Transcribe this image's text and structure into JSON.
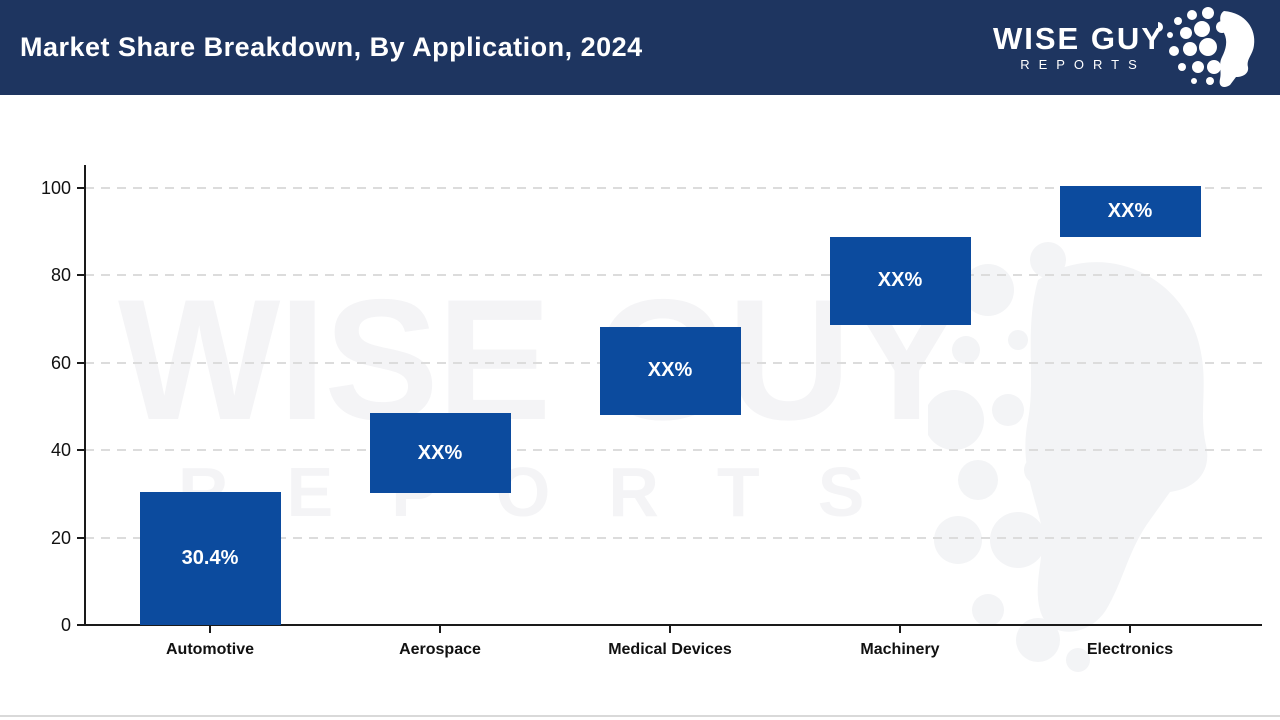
{
  "header": {
    "title": "Market Share Breakdown, By Application, 2024",
    "bg_color": "#1e3560",
    "logo": {
      "line1": "WISE GUY",
      "line2": "REPORTS"
    }
  },
  "watermark": {
    "line1": "WISE GUY",
    "line2": "REPORTS"
  },
  "chart_data": {
    "type": "bar",
    "variant": "floating-segment-waterfall",
    "title": "Market Share Breakdown, By Application, 2024",
    "categories": [
      "Automotive",
      "Aerospace",
      "Medical Devices",
      "Machinery",
      "Electronics"
    ],
    "segments": [
      {
        "category": "Automotive",
        "start": 0,
        "end": 30.4,
        "label": "30.4%"
      },
      {
        "category": "Aerospace",
        "start": 30.2,
        "end": 48.4,
        "label": "XX%"
      },
      {
        "category": "Medical Devices",
        "start": 48.0,
        "end": 68.2,
        "label": "XX%"
      },
      {
        "category": "Machinery",
        "start": 68.6,
        "end": 88.8,
        "label": "XX%"
      },
      {
        "category": "Electronics",
        "start": 88.7,
        "end": 100.3,
        "label": "XX%"
      }
    ],
    "yticks": [
      0,
      20,
      40,
      60,
      80,
      100
    ],
    "ylim": [
      0,
      105
    ],
    "xlabel": "",
    "ylabel": "",
    "grid": "dashed-horizontal",
    "legend": "none",
    "bar_color": "#0c4b9e",
    "grid_color": "#dcdcdc",
    "axis_color": "#1a1a1a",
    "bar_label_color": "#ffffff"
  }
}
